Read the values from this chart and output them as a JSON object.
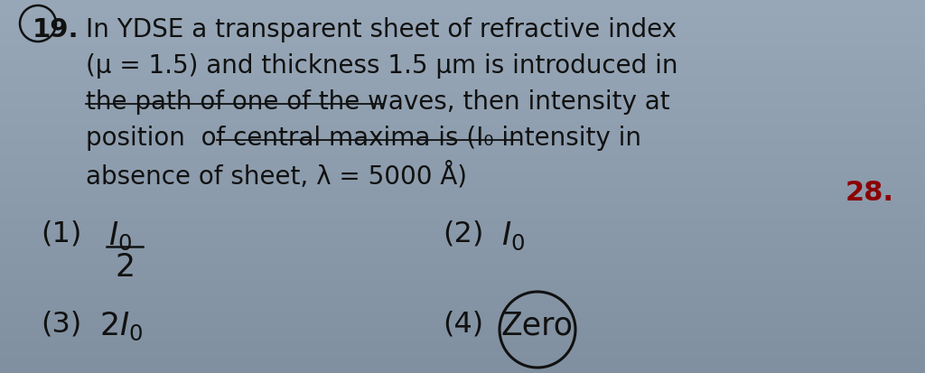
{
  "background_color": "#8090a0",
  "question_number": "19.",
  "question_text_lines": [
    "In YDSE a transparent sheet of refractive index",
    "(μ = 1.5) and thickness 1.5 μm is introduced in",
    "the path of one of the waves, then intensity at",
    "position  of central maxima is (I₀ intensity in",
    "absence of sheet, λ = 5000 Å)"
  ],
  "side_number": "28.",
  "text_color": "#111111",
  "side_number_color": "#8B0000",
  "font_size_question": 20,
  "font_size_options": 23,
  "font_size_qnum": 21
}
